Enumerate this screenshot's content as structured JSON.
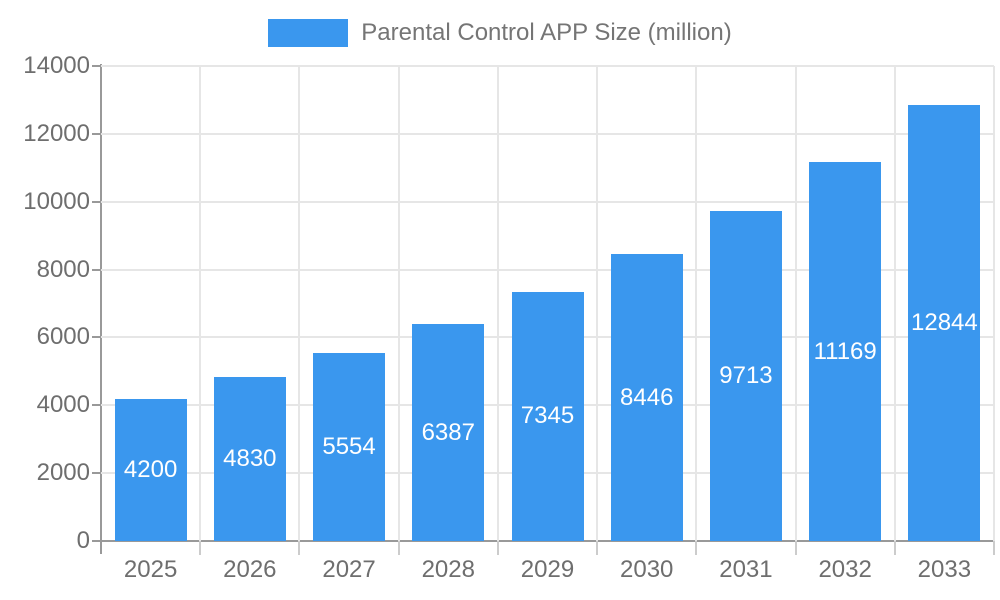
{
  "chart_data": {
    "type": "bar",
    "title": "Parental Control APP Size (million)",
    "categories": [
      "2025",
      "2026",
      "2027",
      "2028",
      "2029",
      "2030",
      "2031",
      "2032",
      "2033"
    ],
    "values": [
      4200,
      4830,
      5554,
      6387,
      7345,
      8446,
      9713,
      11169,
      12844
    ],
    "value_labels": [
      "4200",
      "4830",
      "5554",
      "6387",
      "7345",
      "8446",
      "9713",
      "11169",
      "12844"
    ],
    "xlabel": "",
    "ylabel": "",
    "ylim": [
      0,
      14000
    ],
    "ytick_step": 2000,
    "ytick_labels": [
      "0",
      "2000",
      "4000",
      "6000",
      "8000",
      "10000",
      "12000",
      "14000"
    ],
    "grid": true,
    "legend_position": "top"
  },
  "legend": {
    "swatch_icon": "legend-color-swatch",
    "label": "Parental Control APP Size (million)"
  },
  "colors": {
    "bar": "#3A97EE",
    "grid": "#E6E6E6",
    "axis": "#999999",
    "category_tick": "#CCCCCC",
    "axis_text": "#6E6E6E",
    "legend_text": "#757575",
    "value_text": "#FFFFFF",
    "background": "#FFFFFF"
  }
}
